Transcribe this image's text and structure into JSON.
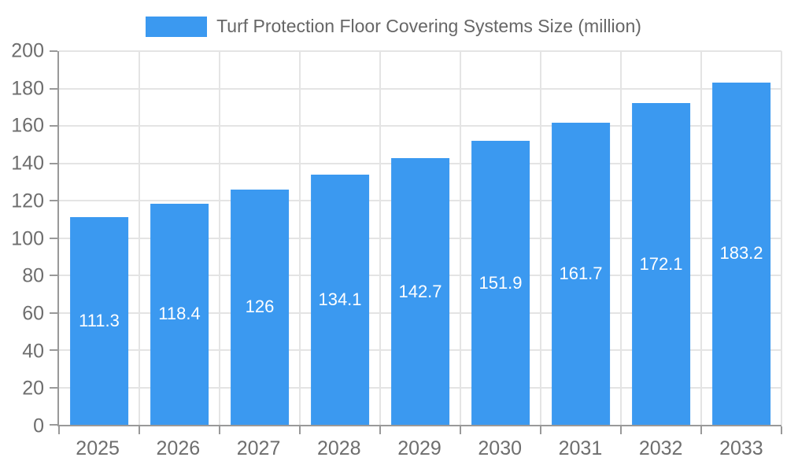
{
  "chart_data": {
    "type": "bar",
    "title": "Turf Protection Floor Covering Systems Size (million)",
    "categories": [
      "2025",
      "2026",
      "2027",
      "2028",
      "2029",
      "2030",
      "2031",
      "2032",
      "2033"
    ],
    "values": [
      111.3,
      118.4,
      126,
      134.1,
      142.7,
      151.9,
      161.7,
      172.1,
      183.2
    ],
    "value_labels": [
      "111.3",
      "118.4",
      "126",
      "134.1",
      "142.7",
      "151.9",
      "161.7",
      "172.1",
      "183.2"
    ],
    "xlabel": "",
    "ylabel": "",
    "ylim": [
      0,
      200
    ],
    "yticks": [
      0,
      20,
      40,
      60,
      80,
      100,
      120,
      140,
      160,
      180,
      200
    ],
    "grid": true,
    "legend_position": "top-center",
    "colors": {
      "bar": "#3b99f0",
      "grid": "#e4e4e4",
      "axis": "#999999",
      "axis_label": "#6e6e6e",
      "legend_text": "#666666",
      "value_label": "#ffffff",
      "background": "#ffffff"
    }
  }
}
